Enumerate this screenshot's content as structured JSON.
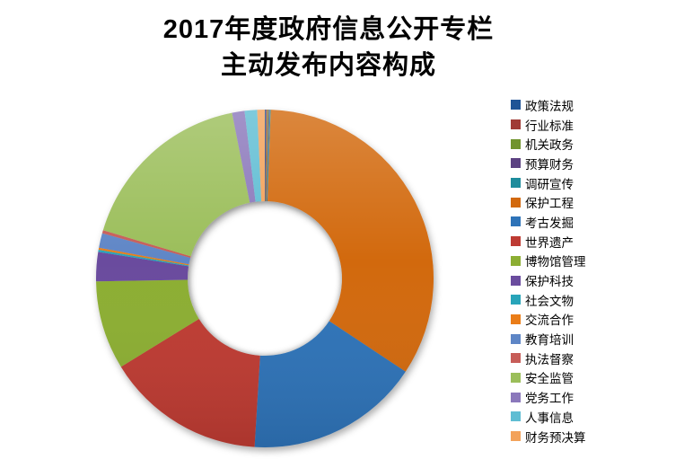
{
  "title": {
    "line1": "2017年度政府信息公开专栏",
    "line2": "主动发布内容构成"
  },
  "chart_data": {
    "type": "pie",
    "subtype": "donut",
    "title": "2017年度政府信息公开专栏 主动发布内容构成",
    "legend_position": "right",
    "start_angle_deg": 0,
    "direction": "clockwise",
    "inner_radius_ratio": 0.46,
    "values_are": "percent_estimated_from_pixels",
    "slices": [
      {
        "label": "政策法规",
        "value": 0.12,
        "color": "#1F5496"
      },
      {
        "label": "行业标准",
        "value": 0.12,
        "color": "#A03A35"
      },
      {
        "label": "机关政务",
        "value": 0.12,
        "color": "#71932D"
      },
      {
        "label": "预算财务",
        "value": 0.1,
        "color": "#5C4282"
      },
      {
        "label": "调研宣传",
        "value": 0.1,
        "color": "#1E8C9C"
      },
      {
        "label": "保护工程",
        "value": 33.8,
        "color": "#D2690E"
      },
      {
        "label": "考古发掘",
        "value": 16.7,
        "color": "#2E73B8"
      },
      {
        "label": "世界遗产",
        "value": 15.3,
        "color": "#BE3B33"
      },
      {
        "label": "博物馆管理",
        "value": 8.5,
        "color": "#8CAE33"
      },
      {
        "label": "保护科技",
        "value": 2.8,
        "color": "#6A4C9E"
      },
      {
        "label": "社会文物",
        "value": 0.2,
        "color": "#28A4B9"
      },
      {
        "label": "交流合作",
        "value": 0.2,
        "color": "#EA7D18"
      },
      {
        "label": "教育培训",
        "value": 1.4,
        "color": "#5E86C6"
      },
      {
        "label": "执法督察",
        "value": 0.3,
        "color": "#C75D58"
      },
      {
        "label": "安全监管",
        "value": 17.3,
        "color": "#9BBE5A"
      },
      {
        "label": "党务工作",
        "value": 1.2,
        "color": "#8B78BB"
      },
      {
        "label": "人事信息",
        "value": 1.2,
        "color": "#5FBDD3"
      },
      {
        "label": "财务预决算",
        "value": 0.72,
        "color": "#F3A25A"
      }
    ]
  }
}
